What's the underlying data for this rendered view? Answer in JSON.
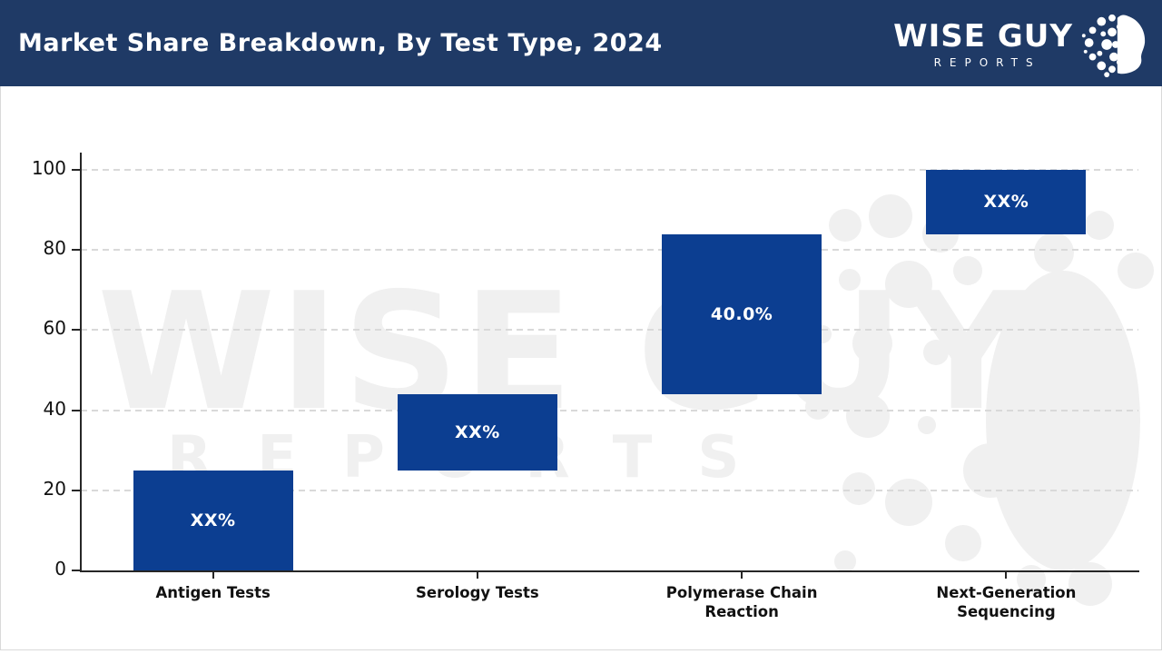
{
  "header": {
    "title": "Market Share Breakdown, By Test Type, 2024",
    "logo": {
      "brand": "WISE GUY",
      "brand_sub": "REPORTS"
    },
    "bg_color": "#1f3a66",
    "text_color": "#ffffff"
  },
  "watermark": {
    "big_text": "WISE GUY",
    "sub_text": "REPORTS",
    "color": "#f0f0f0"
  },
  "chart_data": {
    "type": "bar",
    "subtype": "waterfall",
    "title": "Market Share Breakdown, By Test Type, 2024",
    "categories": [
      "Antigen Tests",
      "Serology Tests",
      "Polymerase Chain Reaction",
      "Next-Generation Sequencing"
    ],
    "segments": [
      {
        "category": "Antigen Tests",
        "start": 0,
        "end": 25,
        "label": "XX%"
      },
      {
        "category": "Serology Tests",
        "start": 25,
        "end": 44,
        "label": "XX%"
      },
      {
        "category": "Polymerase Chain Reaction",
        "start": 44,
        "end": 84,
        "label": "40.0%"
      },
      {
        "category": "Next-Generation Sequencing",
        "start": 84,
        "end": 100,
        "label": "XX%"
      }
    ],
    "segment_heights": [
      25,
      19,
      40,
      16
    ],
    "ylim": [
      0,
      100
    ],
    "yticks": [
      0,
      20,
      40,
      60,
      80,
      100
    ],
    "xlabel": "",
    "ylabel": "",
    "grid": "horizontal dashed",
    "legend_position": "none",
    "bar_color": "#0c3e91",
    "bar_label_color": "#ffffff",
    "axis_color": "#262626",
    "grid_color": "#d9d9d9",
    "tick_label_color": "#111111"
  }
}
